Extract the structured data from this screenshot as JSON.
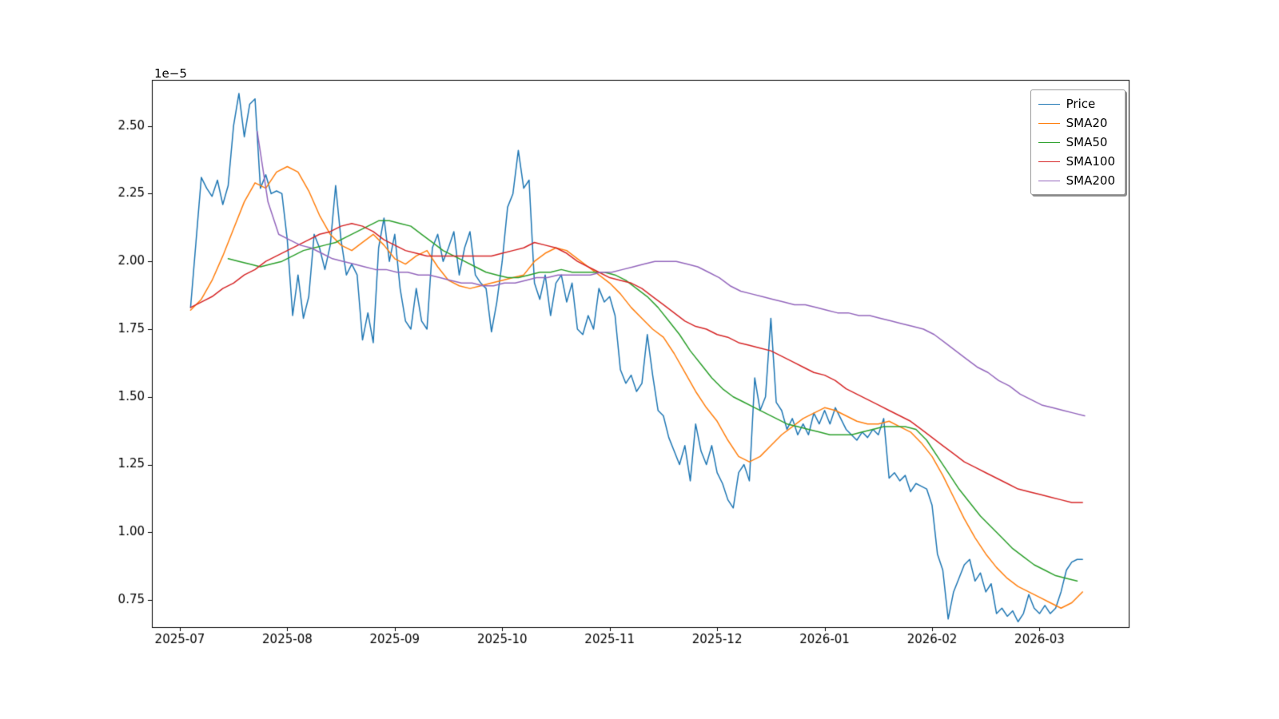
{
  "chart_data": {
    "type": "line",
    "title": "",
    "xlabel": "",
    "ylabel": "",
    "offset_text": "1e−5",
    "grid": false,
    "legend_position": "upper right",
    "legend_entries": [
      "Price",
      "SMA20",
      "SMA50",
      "SMA100",
      "SMA200"
    ],
    "x_unit": "months since 2025-07-01",
    "xlim": [
      -0.26,
      8.83
    ],
    "ylim": [
      0.65,
      2.67
    ],
    "x_ticks": {
      "positions": [
        0,
        1,
        2,
        3,
        4,
        5,
        6,
        7,
        8
      ],
      "labels": [
        "2025-07",
        "2025-08",
        "2025-09",
        "2025-10",
        "2025-11",
        "2025-12",
        "2026-01",
        "2026-02",
        "2026-03"
      ]
    },
    "y_ticks": {
      "positions": [
        0.75,
        1.0,
        1.25,
        1.5,
        1.75,
        2.0,
        2.25,
        2.5
      ],
      "labels": [
        "0.75",
        "1.00",
        "1.25",
        "1.50",
        "1.75",
        "2.00",
        "2.25",
        "2.50"
      ]
    },
    "series": [
      {
        "name": "Price",
        "color": "#1f77b4",
        "x_start": 0.1,
        "x_step": 0.05,
        "values": [
          1.83,
          2.07,
          2.31,
          2.27,
          2.24,
          2.3,
          2.21,
          2.28,
          2.5,
          2.62,
          2.46,
          2.58,
          2.6,
          2.27,
          2.32,
          2.25,
          2.26,
          2.25,
          2.08,
          1.8,
          1.95,
          1.79,
          1.87,
          2.1,
          2.05,
          1.97,
          2.06,
          2.28,
          2.08,
          1.95,
          1.99,
          1.95,
          1.71,
          1.81,
          1.7,
          2.05,
          2.16,
          2.0,
          2.1,
          1.9,
          1.78,
          1.75,
          1.9,
          1.78,
          1.75,
          2.05,
          2.1,
          2.0,
          2.05,
          2.11,
          1.95,
          2.05,
          2.11,
          1.95,
          1.92,
          1.9,
          1.74,
          1.85,
          2.0,
          2.2,
          2.25,
          2.41,
          2.27,
          2.3,
          1.92,
          1.86,
          1.95,
          1.8,
          1.92,
          1.95,
          1.85,
          1.92,
          1.75,
          1.73,
          1.8,
          1.75,
          1.9,
          1.85,
          1.87,
          1.8,
          1.6,
          1.55,
          1.58,
          1.52,
          1.55,
          1.73,
          1.58,
          1.45,
          1.43,
          1.35,
          1.3,
          1.25,
          1.32,
          1.19,
          1.4,
          1.3,
          1.25,
          1.32,
          1.22,
          1.18,
          1.12,
          1.09,
          1.22,
          1.25,
          1.19,
          1.57,
          1.45,
          1.5,
          1.79,
          1.48,
          1.45,
          1.38,
          1.42,
          1.36,
          1.4,
          1.36,
          1.44,
          1.4,
          1.45,
          1.4,
          1.46,
          1.42,
          1.38,
          1.36,
          1.34,
          1.37,
          1.35,
          1.38,
          1.36,
          1.42,
          1.2,
          1.22,
          1.19,
          1.21,
          1.15,
          1.18,
          1.17,
          1.16,
          1.1,
          0.92,
          0.86,
          0.68,
          0.78,
          0.83,
          0.88,
          0.9,
          0.82,
          0.85,
          0.78,
          0.81,
          0.7,
          0.72,
          0.69,
          0.71,
          0.67,
          0.7,
          0.77,
          0.72,
          0.7,
          0.73,
          0.7,
          0.72,
          0.78,
          0.86,
          0.89,
          0.9,
          0.9
        ]
      },
      {
        "name": "SMA20",
        "color": "#ff7f0e",
        "x_start": 0.1,
        "x_step": 0.1,
        "values": [
          1.82,
          1.86,
          1.93,
          2.02,
          2.12,
          2.22,
          2.29,
          2.27,
          2.33,
          2.35,
          2.33,
          2.26,
          2.17,
          2.1,
          2.06,
          2.04,
          2.07,
          2.1,
          2.06,
          2.01,
          1.99,
          2.02,
          2.04,
          1.98,
          1.93,
          1.91,
          1.9,
          1.91,
          1.92,
          1.93,
          1.94,
          1.95,
          2.0,
          2.03,
          2.05,
          2.04,
          2.01,
          1.98,
          1.95,
          1.92,
          1.88,
          1.83,
          1.79,
          1.75,
          1.72,
          1.66,
          1.59,
          1.52,
          1.46,
          1.41,
          1.34,
          1.28,
          1.26,
          1.28,
          1.32,
          1.36,
          1.39,
          1.42,
          1.44,
          1.46,
          1.45,
          1.43,
          1.41,
          1.4,
          1.4,
          1.41,
          1.39,
          1.37,
          1.33,
          1.28,
          1.21,
          1.13,
          1.05,
          0.98,
          0.92,
          0.87,
          0.83,
          0.8,
          0.78,
          0.76,
          0.74,
          0.72,
          0.74,
          0.78
        ]
      },
      {
        "name": "SMA50",
        "color": "#2ca02c",
        "x_start": 0.45,
        "x_step": 0.1,
        "values": [
          2.01,
          2.0,
          1.99,
          1.98,
          1.99,
          2.0,
          2.02,
          2.04,
          2.05,
          2.06,
          2.07,
          2.09,
          2.11,
          2.13,
          2.15,
          2.15,
          2.14,
          2.13,
          2.1,
          2.07,
          2.04,
          2.02,
          2.0,
          1.98,
          1.96,
          1.95,
          1.94,
          1.94,
          1.95,
          1.96,
          1.96,
          1.97,
          1.96,
          1.96,
          1.96,
          1.96,
          1.95,
          1.93,
          1.9,
          1.87,
          1.83,
          1.78,
          1.73,
          1.67,
          1.62,
          1.57,
          1.53,
          1.5,
          1.48,
          1.46,
          1.44,
          1.42,
          1.4,
          1.39,
          1.38,
          1.37,
          1.36,
          1.36,
          1.36,
          1.37,
          1.38,
          1.39,
          1.39,
          1.39,
          1.38,
          1.34,
          1.28,
          1.22,
          1.16,
          1.11,
          1.06,
          1.02,
          0.98,
          0.94,
          0.91,
          0.88,
          0.86,
          0.84,
          0.83,
          0.82
        ]
      },
      {
        "name": "SMA100",
        "color": "#d62728",
        "x_start": 0.1,
        "x_step": 0.1,
        "values": [
          1.83,
          1.85,
          1.87,
          1.9,
          1.92,
          1.95,
          1.97,
          2.0,
          2.02,
          2.04,
          2.06,
          2.08,
          2.1,
          2.11,
          2.13,
          2.14,
          2.13,
          2.11,
          2.08,
          2.06,
          2.04,
          2.03,
          2.02,
          2.02,
          2.02,
          2.02,
          2.02,
          2.02,
          2.02,
          2.03,
          2.04,
          2.05,
          2.07,
          2.06,
          2.05,
          2.03,
          2.0,
          1.98,
          1.96,
          1.94,
          1.93,
          1.92,
          1.9,
          1.87,
          1.84,
          1.81,
          1.78,
          1.76,
          1.75,
          1.73,
          1.72,
          1.7,
          1.69,
          1.68,
          1.67,
          1.65,
          1.63,
          1.61,
          1.59,
          1.58,
          1.56,
          1.53,
          1.51,
          1.49,
          1.47,
          1.45,
          1.43,
          1.41,
          1.38,
          1.35,
          1.32,
          1.29,
          1.26,
          1.24,
          1.22,
          1.2,
          1.18,
          1.16,
          1.15,
          1.14,
          1.13,
          1.12,
          1.11,
          1.11
        ]
      },
      {
        "name": "SMA200",
        "color": "#9467bd",
        "x_start": 0.72,
        "x_step": 0.1,
        "values": [
          2.48,
          2.22,
          2.1,
          2.08,
          2.06,
          2.05,
          2.03,
          2.01,
          2.0,
          1.99,
          1.98,
          1.97,
          1.97,
          1.96,
          1.96,
          1.95,
          1.95,
          1.94,
          1.93,
          1.92,
          1.92,
          1.91,
          1.91,
          1.92,
          1.92,
          1.93,
          1.94,
          1.94,
          1.95,
          1.95,
          1.95,
          1.95,
          1.96,
          1.96,
          1.97,
          1.98,
          1.99,
          2.0,
          2.0,
          2.0,
          1.99,
          1.98,
          1.96,
          1.94,
          1.91,
          1.89,
          1.88,
          1.87,
          1.86,
          1.85,
          1.84,
          1.84,
          1.83,
          1.82,
          1.81,
          1.81,
          1.8,
          1.8,
          1.79,
          1.78,
          1.77,
          1.76,
          1.75,
          1.73,
          1.7,
          1.67,
          1.64,
          1.61,
          1.59,
          1.56,
          1.54,
          1.51,
          1.49,
          1.47,
          1.46,
          1.45,
          1.44,
          1.43
        ]
      }
    ],
    "style": {
      "axes_edge_color": "#000000",
      "tick_label_color": "#000000",
      "plot_background": "#ffffff",
      "line_width": 1.5
    }
  }
}
